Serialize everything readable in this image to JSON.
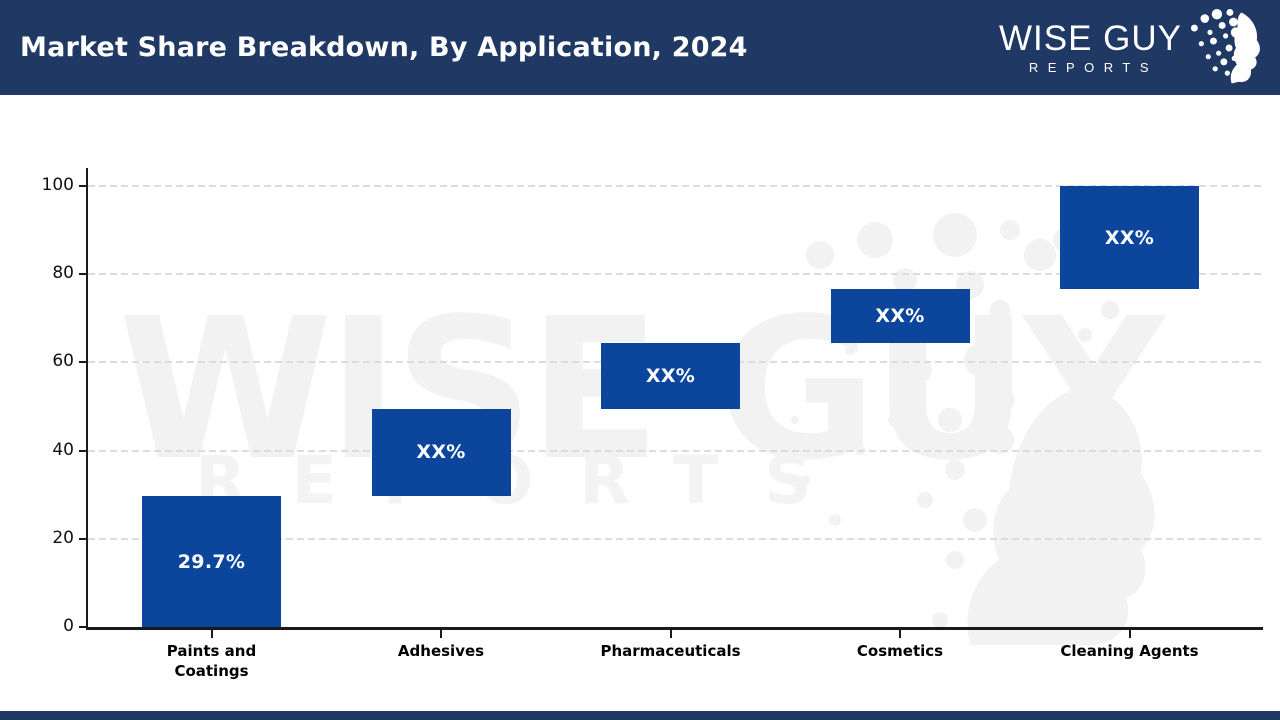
{
  "header": {
    "title": "Market Share Breakdown, By Application, 2024",
    "logo": {
      "wordmark": "WISE GUY",
      "subtext": "REPORTS"
    }
  },
  "watermark": {
    "wordmark": "WISE GUY",
    "subtext": "REPORTS"
  },
  "chart_data": {
    "type": "bar",
    "subtype": "floating-segment-waterfall",
    "title": "Market Share Breakdown, By Application, 2024",
    "categories": [
      "Paints and\nCoatings",
      "Adhesives",
      "Pharmaceuticals",
      "Cosmetics",
      "Cleaning Agents"
    ],
    "segments": [
      {
        "category": "Paints and Coatings",
        "start": 0,
        "end": 29.7,
        "label": "29.7%"
      },
      {
        "category": "Adhesives",
        "start": 29.7,
        "end": 49.5,
        "label": "XX%"
      },
      {
        "category": "Pharmaceuticals",
        "start": 49.5,
        "end": 64.3,
        "label": "XX%"
      },
      {
        "category": "Cosmetics",
        "start": 64.3,
        "end": 76.6,
        "label": "XX%"
      },
      {
        "category": "Cleaning Agents",
        "start": 76.6,
        "end": 100,
        "label": "XX%"
      }
    ],
    "yticks": [
      0,
      20,
      40,
      60,
      80,
      100
    ],
    "ylim": [
      0,
      104
    ],
    "xlabel": "",
    "ylabel": "",
    "grid": "horizontal-dashed",
    "legend": "none",
    "bar_color": "#0b459c",
    "label_color": "#ffffff",
    "header_color": "#1f3864"
  }
}
